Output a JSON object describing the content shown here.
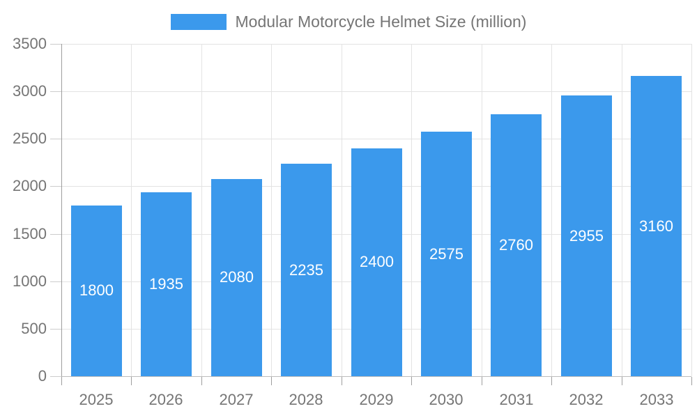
{
  "legend": {
    "label": "Modular Motorcycle Helmet Size (million)",
    "swatch_color": "#3b99ec"
  },
  "colors": {
    "bar": "#3b99ec",
    "bar_label": "#ffffff",
    "axis_text": "#757575",
    "gridline": "#e3e3e3",
    "y_axis_line": "#9e9e9e",
    "x_axis_line": "#bdbdbd"
  },
  "chart_data": {
    "type": "bar",
    "title": "Modular Motorcycle Helmet Size (million)",
    "categories": [
      "2025",
      "2026",
      "2027",
      "2028",
      "2029",
      "2030",
      "2031",
      "2032",
      "2033"
    ],
    "values": [
      1800,
      1935,
      2080,
      2235,
      2400,
      2575,
      2760,
      2955,
      3160
    ],
    "xlabel": "",
    "ylabel": "",
    "ylim": [
      0,
      3500
    ],
    "ytick_step": 500,
    "ytick_labels": [
      "0",
      "500",
      "1000",
      "1500",
      "2000",
      "2500",
      "3000",
      "3500"
    ],
    "grid": true,
    "bar_labels_shown": true,
    "bar_label_position": "inside-center",
    "legend_position": "top-center"
  }
}
